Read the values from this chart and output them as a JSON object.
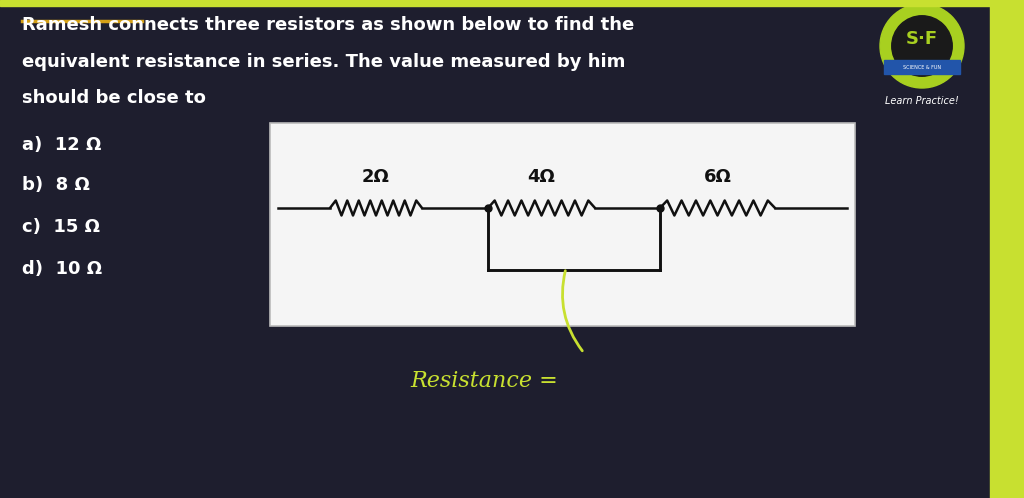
{
  "bg_color": "#1e1e2e",
  "title_text_line1": "Ramesh connects three resistors as shown below to find the",
  "title_text_line2": "equivalent resistance in series. The value measured by him",
  "title_text_line3": "should be close to",
  "title_color": "#ffffff",
  "underline_color": "#d4a017",
  "options": [
    "a)  12 Ω",
    "b)  8 Ω",
    "c)  15 Ω",
    "d)  10 Ω"
  ],
  "options_color": "#ffffff",
  "circuit_bg": "#f5f5f5",
  "circuit_border": "#bbbbbb",
  "resistor_labels": [
    "2Ω",
    "4Ω",
    "6Ω"
  ],
  "wire_color": "#111111",
  "annotation_color": "#c8e030",
  "logo_bg": "#a8d020",
  "logo_text_main": "S·F",
  "logo_text_sub": "Learn Practice!",
  "logo_text_color": "#1a1a1a",
  "logo_sub_color": "#ffffff",
  "top_bar_color": "#c8e030",
  "right_bar_color": "#c8e030"
}
